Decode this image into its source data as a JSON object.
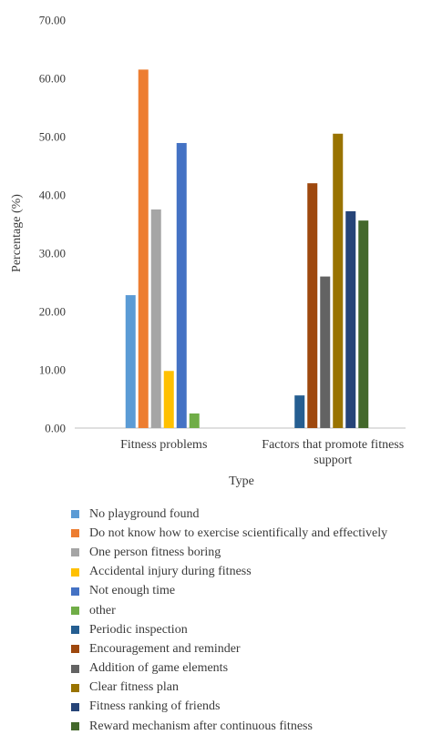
{
  "chart_data": {
    "type": "bar",
    "xlabel": "Type",
    "ylabel": "Percentage (%)",
    "ylim": [
      0,
      70
    ],
    "yticks": [
      "0.00",
      "10.00",
      "20.00",
      "30.00",
      "40.00",
      "50.00",
      "60.00",
      "70.00"
    ],
    "grid": false,
    "legend_position": "bottom",
    "groups": [
      {
        "label_lines": [
          "Fitness problems"
        ],
        "series": [
          {
            "name": "No playground found",
            "value": 22.8,
            "color": "#5b9bd5"
          },
          {
            "name": "Do not know how to exercise scientifically and effectively",
            "value": 61.5,
            "color": "#ed7d31"
          },
          {
            "name": "One person fitness boring",
            "value": 37.5,
            "color": "#a5a5a5"
          },
          {
            "name": "Accidental injury during fitness",
            "value": 9.8,
            "color": "#ffc000"
          },
          {
            "name": "Not enough time",
            "value": 48.9,
            "color": "#4472c4"
          },
          {
            "name": "other",
            "value": 2.5,
            "color": "#70ad47"
          }
        ]
      },
      {
        "label_lines": [
          "Factors that promote fitness",
          "support"
        ],
        "series": [
          {
            "name": "Periodic inspection",
            "value": 5.6,
            "color": "#255e91"
          },
          {
            "name": "Encouragement and reminder",
            "value": 42.0,
            "color": "#9e480e"
          },
          {
            "name": "Addition of game elements",
            "value": 26.0,
            "color": "#636363"
          },
          {
            "name": "Clear fitness plan",
            "value": 50.5,
            "color": "#997300"
          },
          {
            "name": "Fitness ranking of friends",
            "value": 37.2,
            "color": "#264478"
          },
          {
            "name": "Reward mechanism after continuous fitness",
            "value": 35.6,
            "color": "#43682b"
          }
        ]
      }
    ]
  }
}
